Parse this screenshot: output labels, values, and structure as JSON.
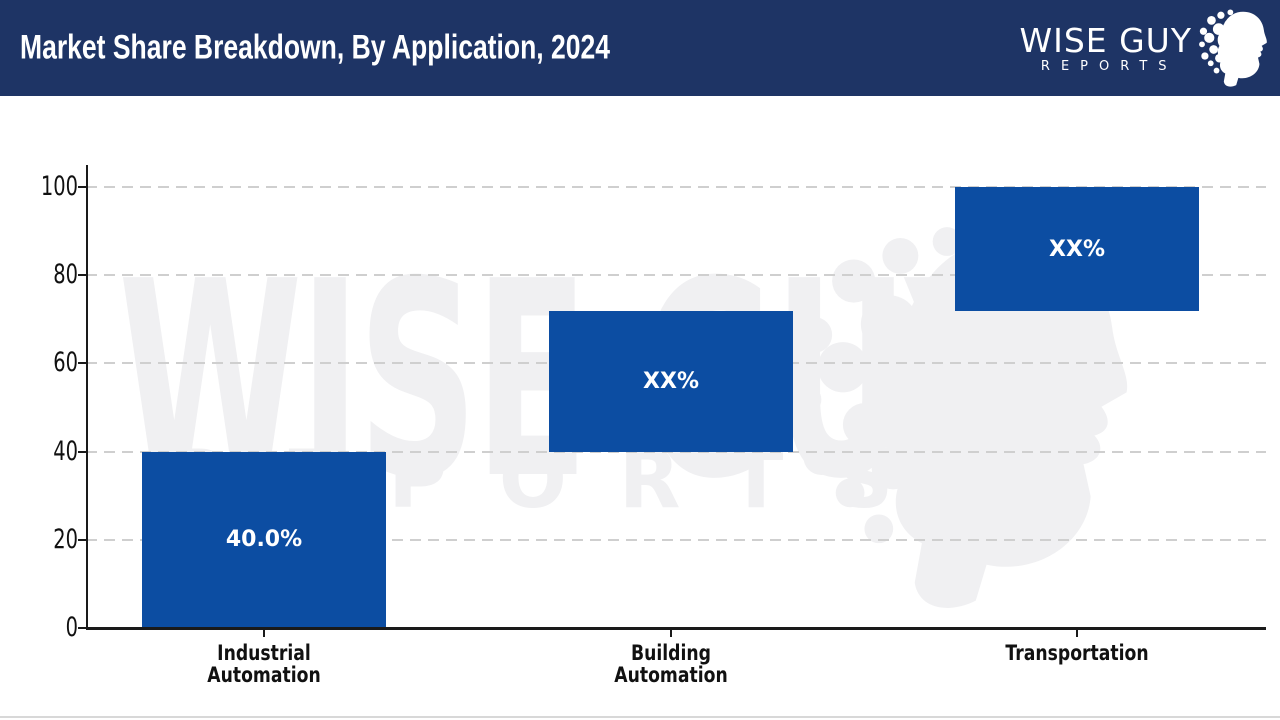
{
  "header": {
    "title": "Market Share Breakdown, By Application, 2024",
    "logo": {
      "wordmark": "WISE GUY",
      "sub": "REPORTS"
    }
  },
  "watermark": {
    "wordmark": "WISE GUY",
    "sub": "REPORTS"
  },
  "chart_data": {
    "type": "bar",
    "subtype": "stepped-waterfall-stack",
    "title": "Market Share Breakdown, By Application, 2024",
    "categories": [
      [
        "Industrial",
        "Automation"
      ],
      [
        "Building",
        "Automation"
      ],
      [
        "Transportation"
      ]
    ],
    "segments": [
      {
        "category": "Industrial Automation",
        "start": 0,
        "end": 40,
        "value_label": "40.0%"
      },
      {
        "category": "Building Automation",
        "start": 40,
        "end": 71.8,
        "value_label": "XX%"
      },
      {
        "category": "Transportation",
        "start": 71.8,
        "end": 100,
        "value_label": "XX%"
      }
    ],
    "ylim": [
      0,
      100
    ],
    "yticks": [
      "0",
      "20",
      "40",
      "60",
      "80",
      "100"
    ],
    "grid": "horizontal-dashed",
    "legend": "none",
    "colors": {
      "bar": "#0c4da2",
      "bar_label": "#ffffff",
      "header_bg": "#1e3465",
      "gridline": "#cfcfcf",
      "axis": "#1a1a1a",
      "watermark": "#f0f0f2"
    }
  }
}
